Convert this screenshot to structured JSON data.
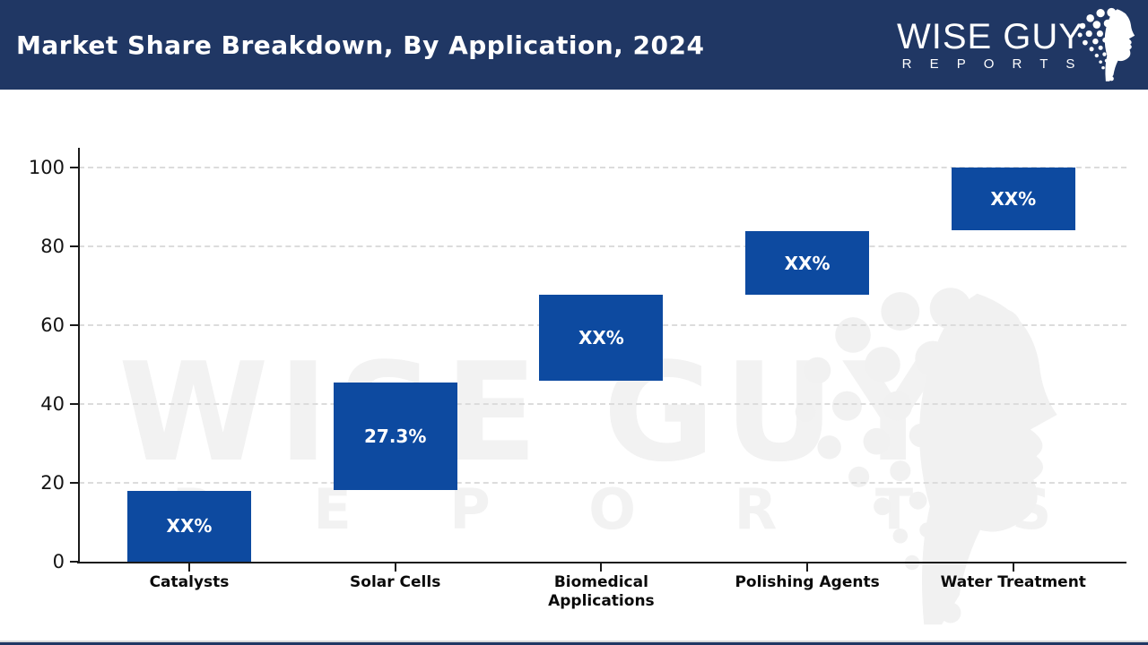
{
  "header": {
    "title": "Market Share Breakdown, By Application, 2024",
    "logo": {
      "line1": "WISE GUY",
      "line2": "R E P O R T S"
    }
  },
  "watermark": {
    "line1": "WISE GUY",
    "line2": "R E P O R T S"
  },
  "colors": {
    "header_bg": "#203764",
    "bar": "#0d4aa0",
    "bar_label": "#ffffff",
    "grid": "#dcdcdc",
    "axis": "#1a1a1a",
    "watermark": "#f2f2f2"
  },
  "chart_data": {
    "type": "bar",
    "subtype": "waterfall",
    "title": "Market Share Breakdown, By Application, 2024",
    "xlabel": "",
    "ylabel": "",
    "ylim": [
      0,
      100
    ],
    "yticks": [
      0,
      20,
      40,
      60,
      80,
      100
    ],
    "grid": "horizontal-dashed",
    "legend": "none",
    "categories": [
      "Catalysts",
      "Solar Cells",
      "Biomedical\nApplications",
      "Polishing Agents",
      "Water Treatment"
    ],
    "segments": [
      {
        "category": "Catalysts",
        "start": 0,
        "end": 18,
        "value_label": "XX%"
      },
      {
        "category": "Solar Cells",
        "start": 18.2,
        "end": 45.5,
        "value_label": "27.3%"
      },
      {
        "category": "Biomedical Applications",
        "start": 45.8,
        "end": 67.7,
        "value_label": "XX%"
      },
      {
        "category": "Polishing Agents",
        "start": 67.7,
        "end": 83.8,
        "value_label": "XX%"
      },
      {
        "category": "Water Treatment",
        "start": 84,
        "end": 100,
        "value_label": "XX%"
      }
    ]
  }
}
